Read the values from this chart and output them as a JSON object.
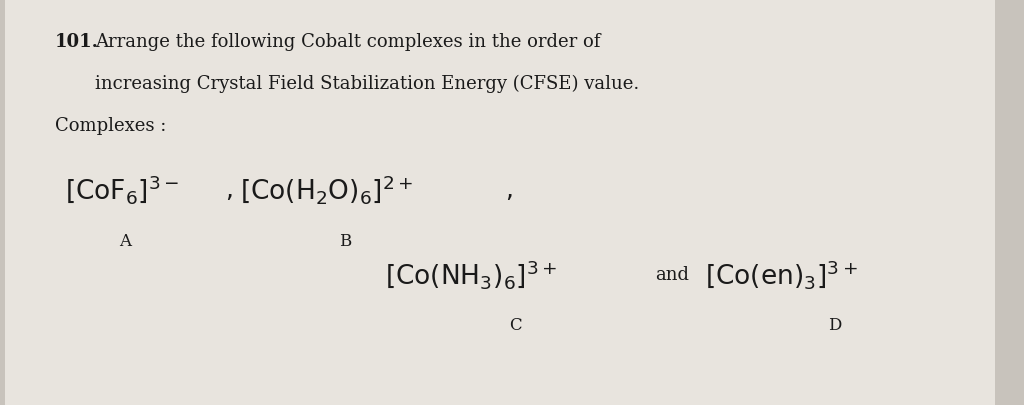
{
  "background_color": "#c8c3bc",
  "paper_color": "#e8e4de",
  "text_color": "#1a1a1a",
  "figsize": [
    10.24,
    4.05
  ],
  "dpi": 100,
  "line1_number": "101.",
  "line1_rest": " Arrange the following Cobalt complexes in the order of",
  "line2": "increasing Crystal Field Stabilization Energy (CFSE) value.",
  "line3": "Complexes :"
}
